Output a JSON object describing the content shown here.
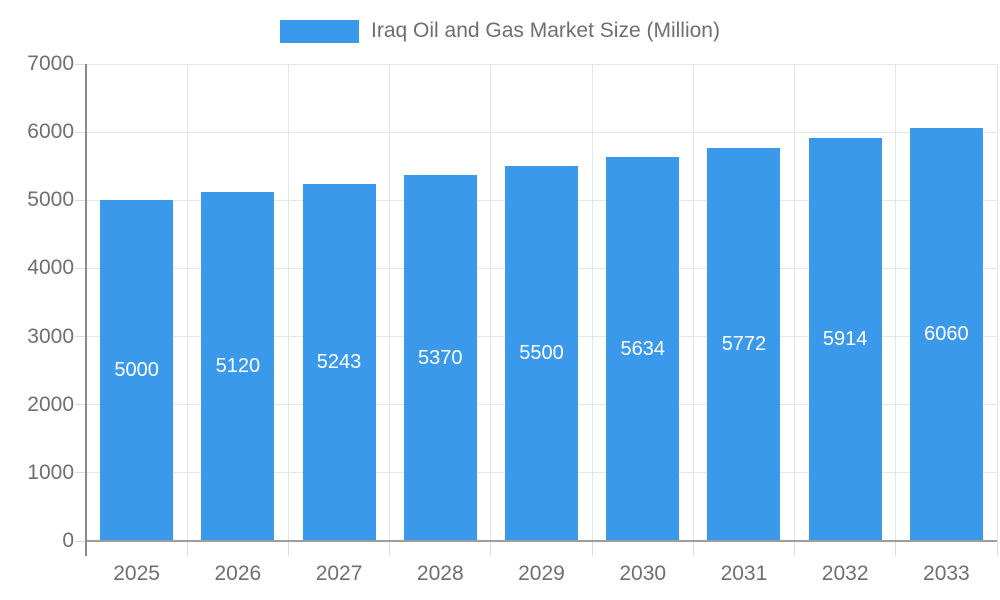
{
  "chart_data": {
    "type": "bar",
    "title": "Iraq Oil and Gas Market Size (Million)",
    "legend": {
      "position": "top",
      "label": "Iraq Oil and Gas Market Size (Million)"
    },
    "categories": [
      "2025",
      "2026",
      "2027",
      "2028",
      "2029",
      "2030",
      "2031",
      "2032",
      "2033"
    ],
    "values": [
      5000,
      5120,
      5243,
      5370,
      5500,
      5634,
      5772,
      5914,
      6060
    ],
    "series": [
      {
        "name": "Iraq Oil and Gas Market Size (Million)",
        "values": [
          5000,
          5120,
          5243,
          5370,
          5500,
          5634,
          5772,
          5914,
          6060
        ]
      }
    ],
    "xlabel": "",
    "ylabel": "",
    "ylim": [
      0,
      7000
    ],
    "ytick_step": 1000,
    "ytick_labels": [
      "0",
      "1000",
      "2000",
      "3000",
      "4000",
      "5000",
      "6000",
      "7000"
    ],
    "grid": true,
    "data_labels_visible": true,
    "colors": {
      "bar": "#3B99EC",
      "grid_line": "#E6E6E6",
      "y_axis_line": "#8A8A8A",
      "x_axis_line": "#9E9E9E",
      "tick_line": "#DCDCDC",
      "axis_label": "#6F6F6F",
      "legend_label": "#6F6F6F",
      "data_label": "#FFFFFF",
      "background": "#FFFFFF"
    }
  }
}
